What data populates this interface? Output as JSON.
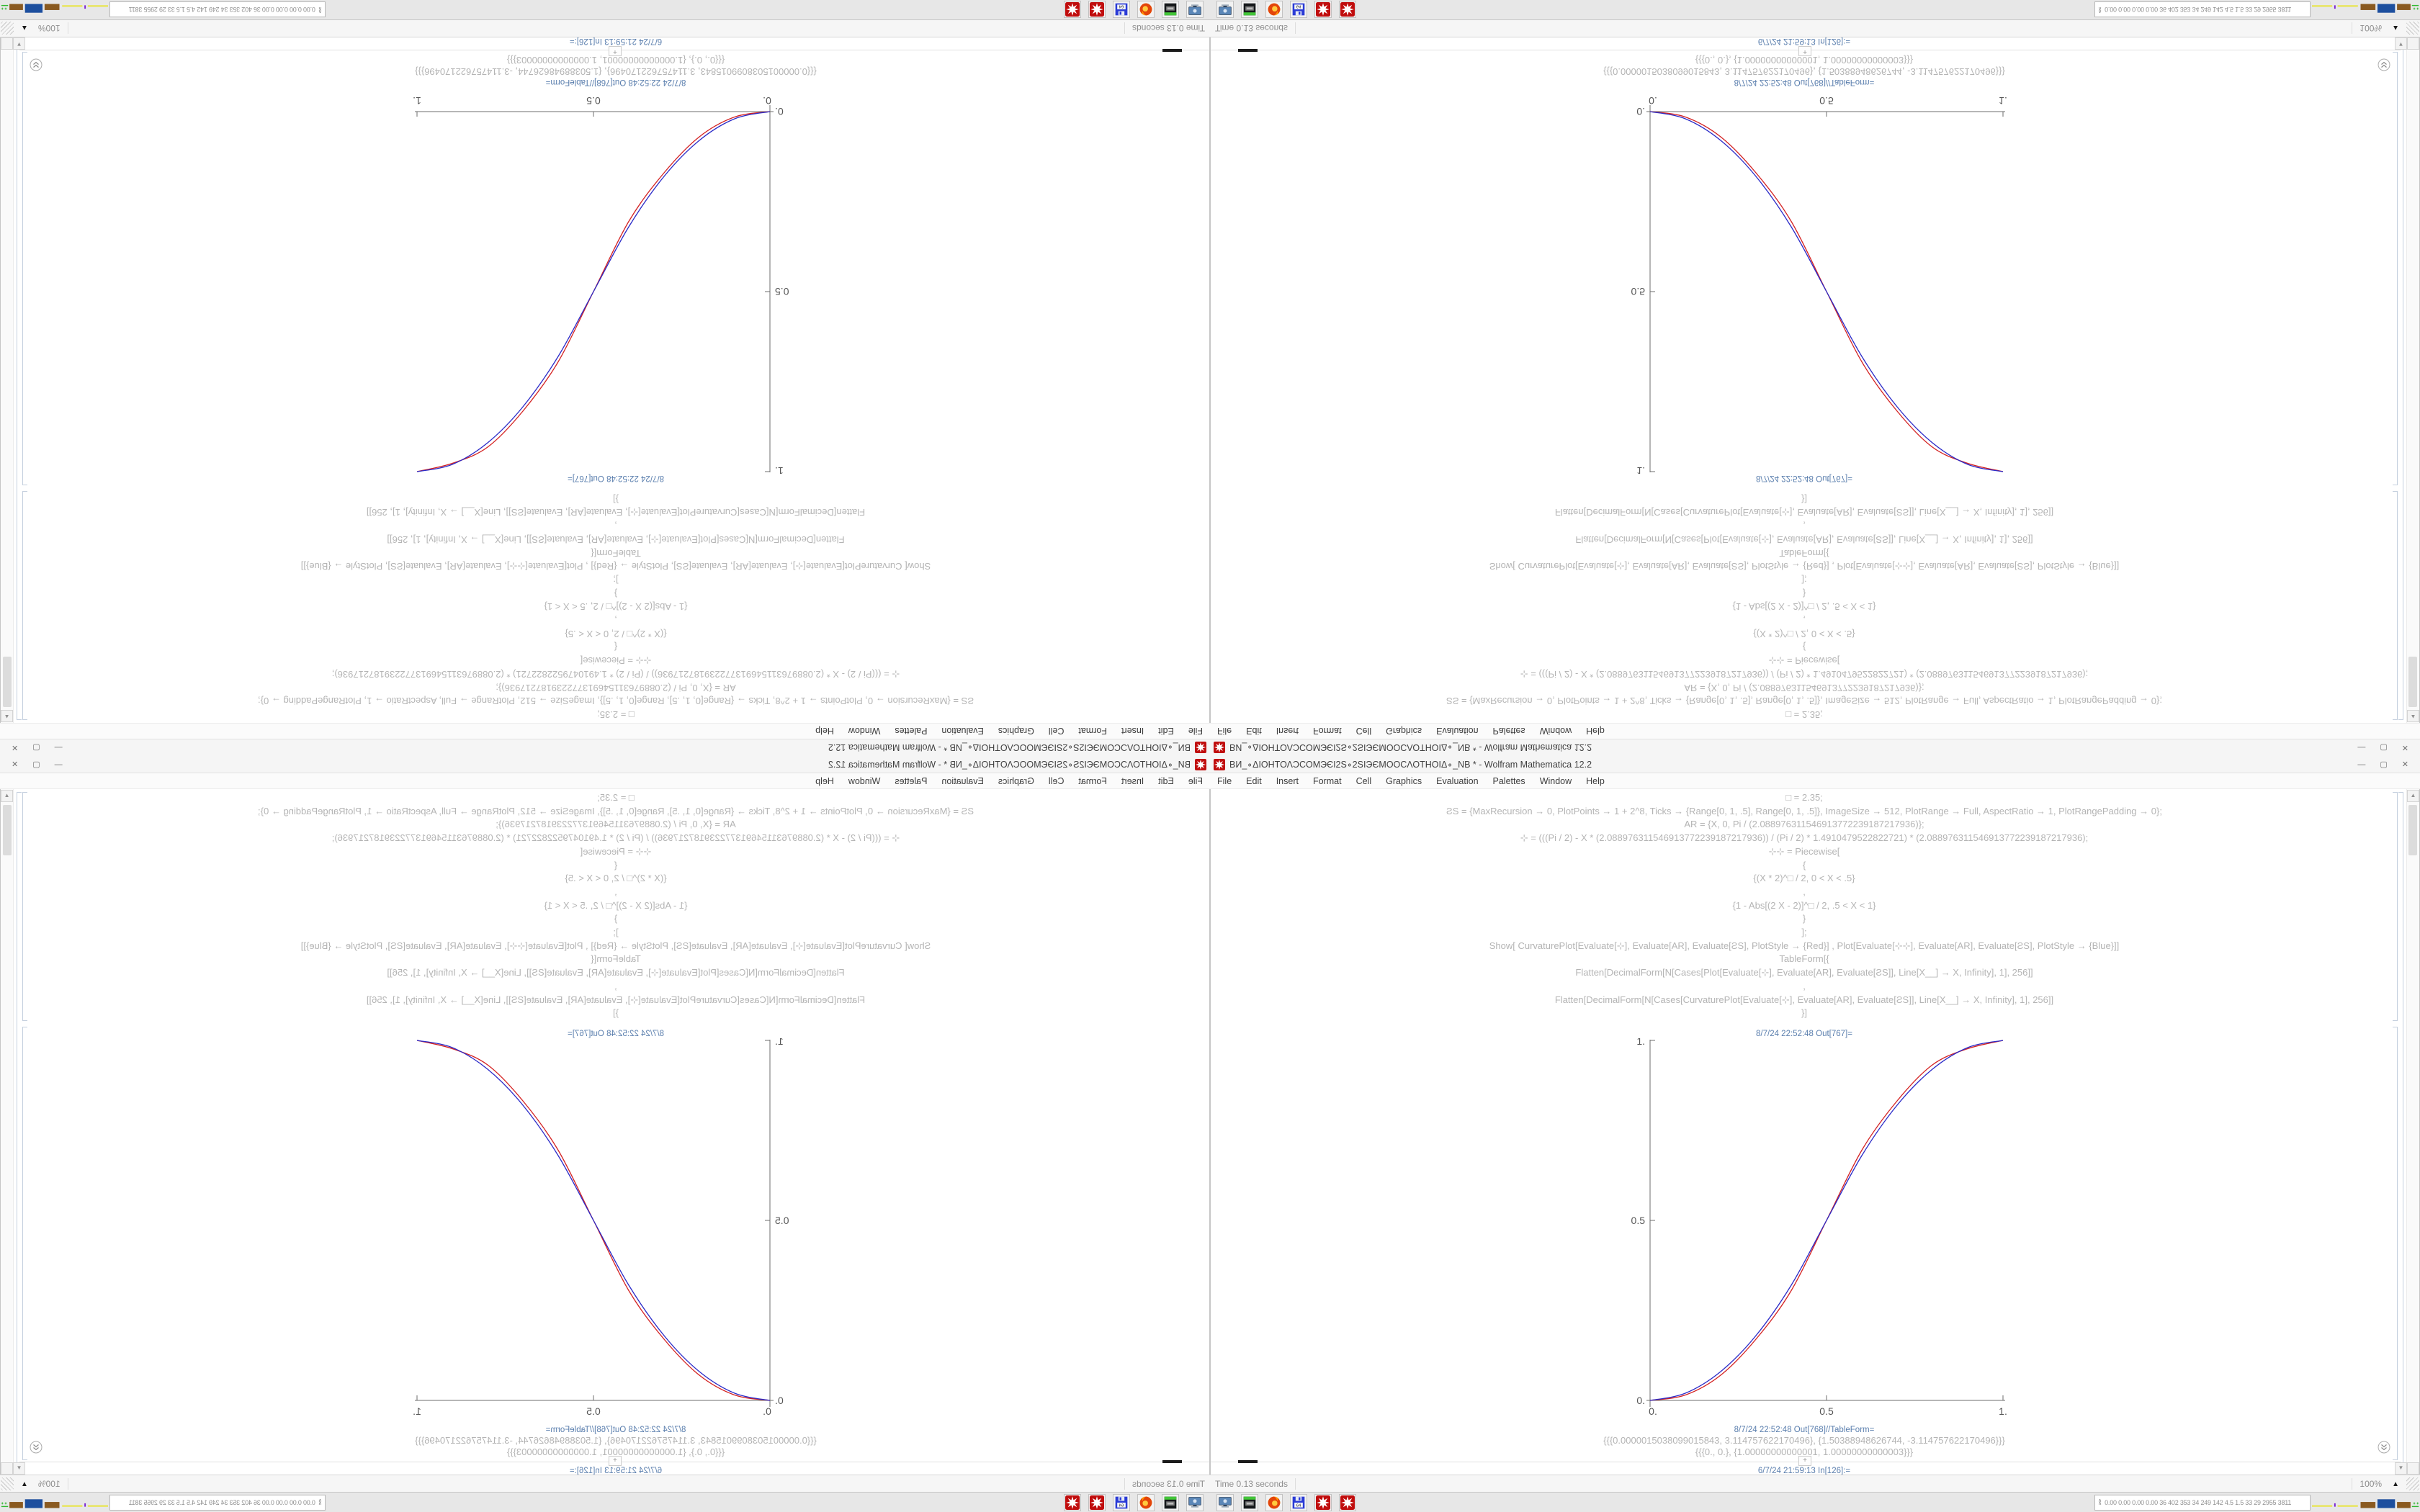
{
  "window": {
    "title": "ВИ_∘ΔΙΟΗΤΟΛϽCOMЭЄΙ2S∘2SΙЭЄMOOCΛΟΤΗΟΙΔ∘_NB * - Wolfram Mathematica 12.2",
    "menu": [
      "File",
      "Edit",
      "Insert",
      "Format",
      "Cell",
      "Graphics",
      "Evaluation",
      "Palettes",
      "Window",
      "Help"
    ],
    "controls": {
      "minimize": "—",
      "maximize": "▢",
      "close": "✕"
    }
  },
  "notebook": {
    "input_lines": [
      "□ = 2.35;",
      "ƧS = {MaxRecursion → 0, PlotPoints → 1 + 2^8, Ticks → {Range[0, 1, .5], Range[0, 1, .5]}, ImageSize → 512, PlotRange → Full, AspectRatio → 1, PlotRangePadding → 0};",
      "AR = {X, 0, Pi / (2.088976311546913772239187217936)};",
      "⊹ = (((Pi / 2) - X * (2.088976311546913772239187217936)) / (Pi / 2) * 1.4910479522822721) * (2.088976311546913772239187217936);",
      "⊹⊹ = Piecewise[",
      "{",
      "{(X * 2)^□ / 2, 0 < X < .5}",
      ",",
      "{1 - Abs[(2 X - 2)]^□ / 2, .5 < X < 1}",
      "}",
      "];",
      "Show[ CurvaturePlot[Evaluate[⊹], Evaluate[AR], Evaluate[ƧS], PlotStyle → {Red}] , Plot[Evaluate[⊹⊹], Evaluate[AR], Evaluate[ƧS], PlotStyle → {Blue}]]",
      "TableForm[{",
      "Flatten[DecimalForm[N[Cases[Plot[Evaluate[⊹], Evaluate[AR], Evaluate[ƧS]], Line[X__] → X, Infinity], 1], 256]]",
      ",",
      "Flatten[DecimalForm[N[Cases[CurvaturePlot[Evaluate[⊹], Evaluate[AR], Evaluate[ƧS]], Line[X__] → X, Infinity], 1], 256]]",
      "}]"
    ],
    "out_plot_label": "8/7/24 22:52:48 Out[767]=",
    "out_table_label": "8/7/24 22:52:48 Out[768]//TableForm=",
    "table_rows": [
      "{{{0.0000015038099015843, 3.114757622170496}, {1.50388948626744, -3.114757622170496}}}",
      "{{{0., 0.}, {1.00000000000001, 1.00000000000003}}}"
    ],
    "next_in_label": "6/7/24 21:59:13 In[126]:=",
    "insert_button": "+"
  },
  "chart_data": {
    "type": "line",
    "title": "",
    "xlabel": "",
    "ylabel": "",
    "xlim": [
      0,
      1
    ],
    "ylim": [
      0,
      1
    ],
    "xticks": [
      "0.",
      "0.5",
      "1."
    ],
    "yticks": [
      "0.",
      "0.5",
      "1."
    ],
    "grid": false,
    "legend": "none",
    "axes_color": "#6e6e6e",
    "series": [
      {
        "name": "CurvaturePlot (Red)",
        "color": "#d42222",
        "points": [
          [
            0,
            0
          ],
          [
            0.1,
            0.015
          ],
          [
            0.2,
            0.07
          ],
          [
            0.3,
            0.17
          ],
          [
            0.4,
            0.305
          ],
          [
            0.5,
            0.5
          ],
          [
            0.6,
            0.695
          ],
          [
            0.7,
            0.832
          ],
          [
            0.8,
            0.932
          ],
          [
            0.9,
            0.977
          ],
          [
            1,
            1
          ]
        ]
      },
      {
        "name": "Plot (Blue)",
        "color": "#2a2ac8",
        "points": [
          [
            0,
            0
          ],
          [
            0.1,
            0.02
          ],
          [
            0.2,
            0.08
          ],
          [
            0.3,
            0.18
          ],
          [
            0.4,
            0.32
          ],
          [
            0.5,
            0.5
          ],
          [
            0.6,
            0.68
          ],
          [
            0.7,
            0.82
          ],
          [
            0.8,
            0.92
          ],
          [
            0.9,
            0.98
          ],
          [
            1,
            1
          ]
        ]
      }
    ]
  },
  "status_bar": {
    "time_label": "Time 0.13 seconds",
    "zoom_level": "100%"
  },
  "taskbar": {
    "app_icons": [
      "system-monitor",
      "gpu-tool",
      "firefox",
      "disk-64",
      "mathematica-kernel",
      "mathematica-frontend"
    ],
    "floppy_label": "64",
    "tray_values": "0.00 0.00 0.00 0.00   36   402   353   34   249   142   4.5   1.5   33   29   2955 3811",
    "spark_colors": [
      "#e8e432",
      "#7a1fd0",
      "#e8e432",
      "#8a5a20",
      "#1d4f9e",
      "#8a5a20",
      "#2fb82f"
    ]
  }
}
